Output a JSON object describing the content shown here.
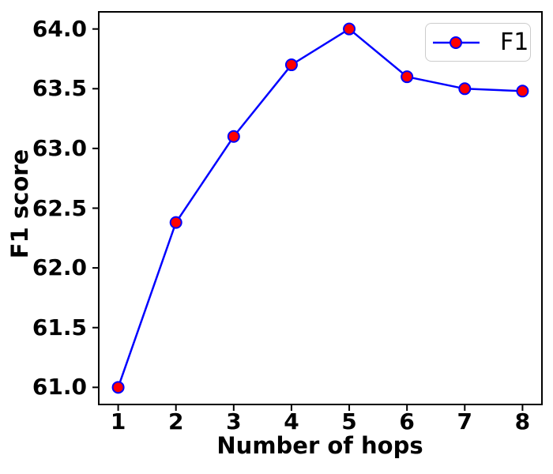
{
  "chart_data": {
    "type": "line",
    "title": "",
    "xlabel": "Number of hops",
    "ylabel": "F1 score",
    "x": [
      1,
      2,
      3,
      4,
      5,
      6,
      7,
      8
    ],
    "series": [
      {
        "name": "F1",
        "values": [
          61.0,
          62.38,
          63.1,
          63.7,
          64.0,
          63.6,
          63.5,
          63.48
        ],
        "line_color": "#0000ff",
        "marker": "circle",
        "marker_color": "#ff0000",
        "marker_edge_color": "#0000ff"
      }
    ],
    "xlim": [
      0.65,
      8.35
    ],
    "ylim": [
      60.85,
      64.15
    ],
    "x_ticks": [
      "1",
      "2",
      "3",
      "4",
      "5",
      "6",
      "7",
      "8"
    ],
    "x_tick_values": [
      1,
      2,
      3,
      4,
      5,
      6,
      7,
      8
    ],
    "y_ticks": [
      "61.0",
      "61.5",
      "62.0",
      "62.5",
      "63.0",
      "63.5",
      "64.0"
    ],
    "y_tick_values": [
      61.0,
      61.5,
      62.0,
      62.5,
      63.0,
      63.5,
      64.0
    ],
    "grid": false,
    "legend": {
      "position": "upper right",
      "entries": [
        "F1"
      ]
    }
  },
  "colors": {
    "axis": "#000000",
    "text": "#000000",
    "background": "#ffffff",
    "legend_border": "#cccccc",
    "line": "#0000ff",
    "marker_fill": "#ff0000",
    "marker_edge": "#0000ff"
  }
}
